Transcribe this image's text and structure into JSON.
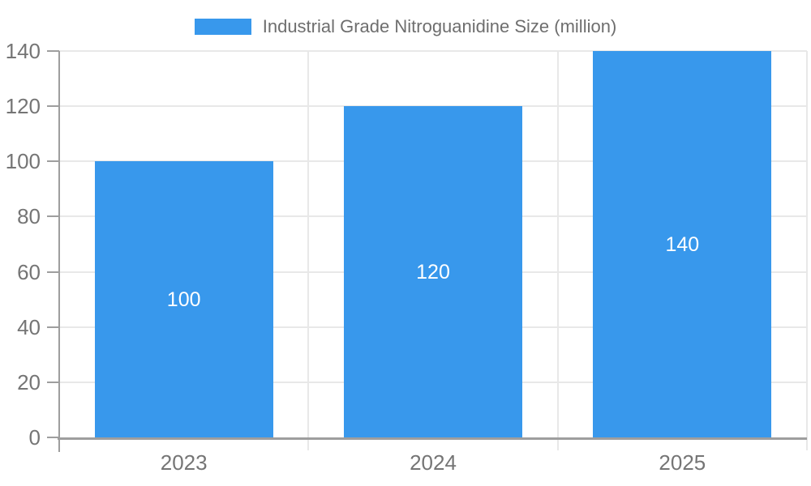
{
  "chart_data": {
    "type": "bar",
    "legend_label": "Industrial Grade Nitroguanidine Size (million)",
    "legend_position": "top",
    "categories": [
      "2023",
      "2024",
      "2025"
    ],
    "values": [
      100,
      120,
      140
    ],
    "ylim": [
      0,
      140
    ],
    "yticks": [
      0,
      20,
      40,
      60,
      80,
      100,
      120,
      140
    ],
    "grid": true,
    "colors": {
      "bar": "#3898EC",
      "data_label": "#FFFFFF",
      "axis_line": "#9E9E9E",
      "gridline": "#E8E8E8",
      "tick_text": "#757575",
      "legend_text": "#6E6E6E",
      "background": "#FFFFFF"
    }
  }
}
